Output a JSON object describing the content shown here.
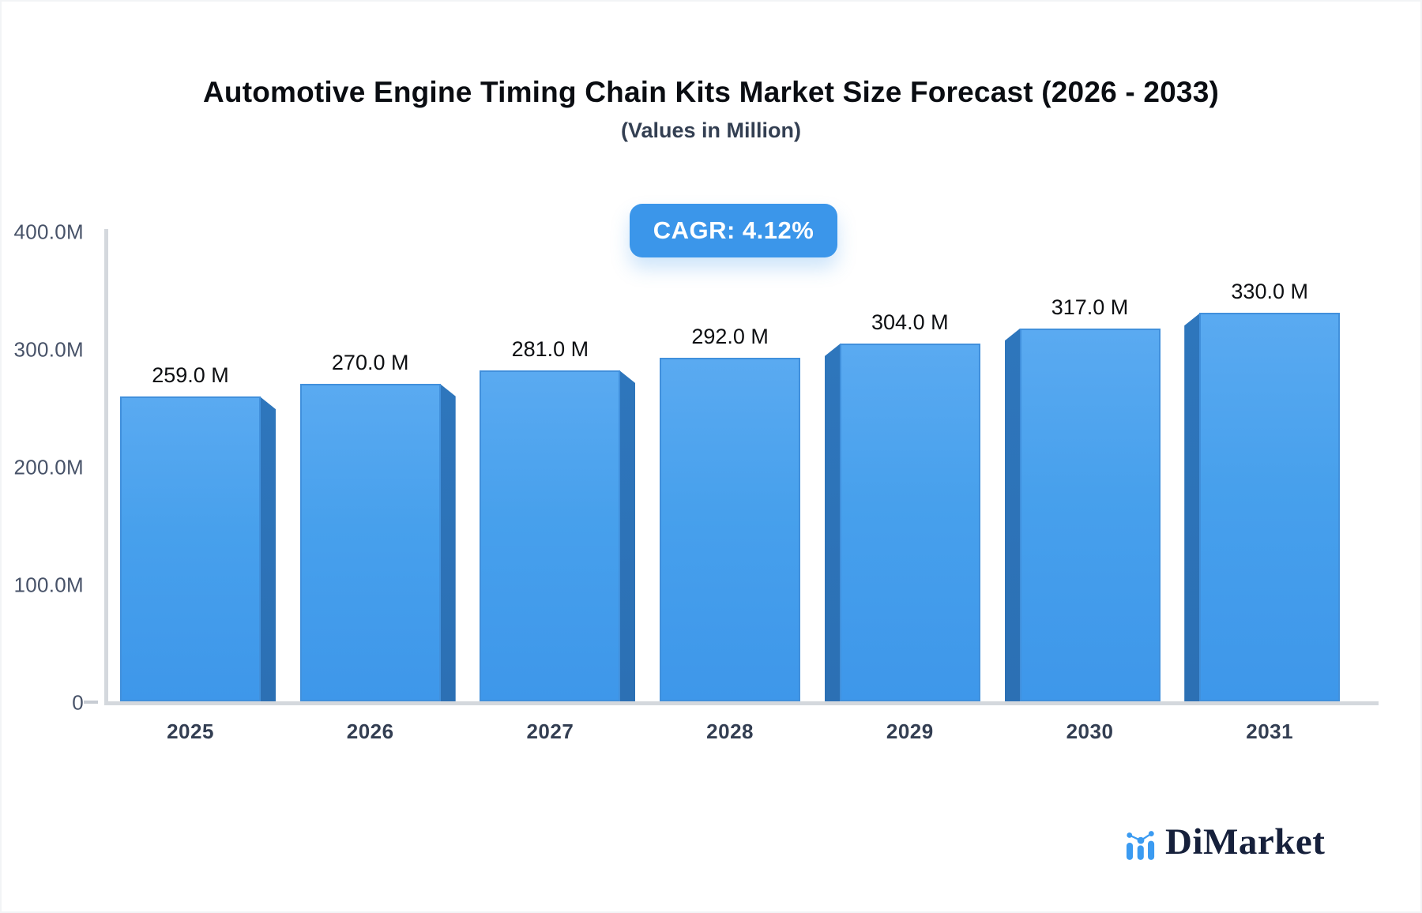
{
  "header": {
    "title": "Automotive Engine Timing Chain Kits Market Size Forecast (2026 - 2033)",
    "subtitle": "(Values in Million)"
  },
  "badge": {
    "label": "CAGR: 4.12%",
    "bg_color": "#3B96EA",
    "text_color": "#FFFFFF"
  },
  "chart_data": {
    "type": "bar",
    "title": "Automotive Engine Timing Chain Kits Market Size Forecast (2026 - 2033)",
    "subtitle": "(Values in Million)",
    "unit": "Million",
    "categories": [
      "2025",
      "2026",
      "2027",
      "2028",
      "2029",
      "2030",
      "2031"
    ],
    "values": [
      259.0,
      270.0,
      281.0,
      292.0,
      304.0,
      317.0,
      330.0
    ],
    "bar_labels": [
      "259.0 M",
      "270.0 M",
      "281.0 M",
      "292.0 M",
      "304.0 M",
      "317.0 M",
      "330.0 M"
    ],
    "y_ticks": [
      {
        "value": 0,
        "label": "0"
      },
      {
        "value": 100,
        "label": "100.0M"
      },
      {
        "value": 200,
        "label": "200.0M"
      },
      {
        "value": 300,
        "label": "300.0M"
      },
      {
        "value": 400,
        "label": "400.0M"
      }
    ],
    "ylim": [
      0,
      400
    ],
    "grid": false,
    "legend": false,
    "colors": {
      "bar_face_top": "#5AAAF1",
      "bar_face_bottom": "#3E97EA",
      "bar_side": "#2E76BC",
      "bar_border": "#4190DC",
      "axis_line": "#D4D8DD",
      "tick_label_color": "#475268",
      "x_label_color": "#333E52",
      "value_label_color": "#0D0F12"
    }
  },
  "logo": {
    "text": "DiMarket",
    "mark_color": "#3B9BF1",
    "text_color": "#16203B"
  }
}
